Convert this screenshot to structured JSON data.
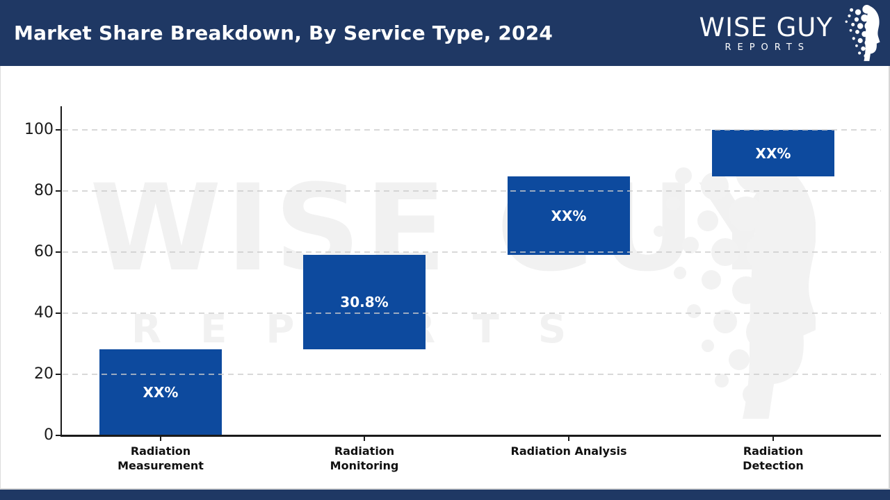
{
  "header": {
    "title": "Market Share Breakdown, By Service Type, 2024",
    "logo": {
      "name": "Wise Guy Reports",
      "line1": "WISE GUY",
      "line2": "REPORTS"
    },
    "colors": {
      "background": "#1f3864",
      "text": "#ffffff"
    }
  },
  "watermark": {
    "line1": "WISE GUY",
    "line2": "REPORTS"
  },
  "chart_data": {
    "type": "bar",
    "subtype": "floating-waterfall-percentage",
    "title": "Market Share Breakdown, By Service Type, 2024",
    "xlabel": "",
    "ylabel": "",
    "ylim": [
      0,
      107
    ],
    "yticks": [
      0,
      20,
      40,
      60,
      80,
      100
    ],
    "grid": "horizontal-dashed",
    "legend": "none",
    "bar_color": "#0d4a9e",
    "bar_label_color": "#ffffff",
    "categories": [
      "Radiation Measurement",
      "Radiation Monitoring",
      "Radiation Analysis",
      "Radiation Detection"
    ],
    "category_lines": [
      [
        "Radiation",
        "Measurement"
      ],
      [
        "Radiation",
        "Monitoring"
      ],
      [
        "Radiation Analysis"
      ],
      [
        "Radiation",
        "Detection"
      ]
    ],
    "segments": [
      {
        "category": "Radiation Measurement",
        "start": 0,
        "end": 28.2,
        "value": null,
        "label": "XX%"
      },
      {
        "category": "Radiation Monitoring",
        "start": 28.2,
        "end": 59.0,
        "value": 30.8,
        "label": "30.8%"
      },
      {
        "category": "Radiation Analysis",
        "start": 59.0,
        "end": 84.7,
        "value": null,
        "label": "XX%"
      },
      {
        "category": "Radiation Detection",
        "start": 84.7,
        "end": 100,
        "value": null,
        "label": "XX%"
      }
    ]
  }
}
